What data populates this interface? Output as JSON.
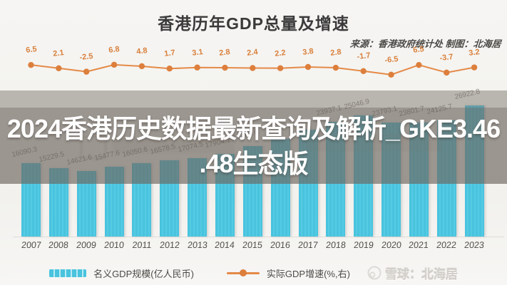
{
  "header": {
    "title": "香港历年GDP总量及增速",
    "source_note": "来源：香港政府统计处 制图：北海居"
  },
  "overlay_banner": {
    "line1": "2024香港历史数据最新查询及解析_GKE3.46",
    "line2": ".48生态版"
  },
  "legend": {
    "bar_label": "名义GDP规模(亿人民币)",
    "line_label": "实际GDP增速(%,右)"
  },
  "brand_watermark": "雪球：北海居",
  "colors": {
    "bar": "#49c3de",
    "line": "#e58a47",
    "line_dot": "#dd7f3c",
    "growth_label": "#d9803c",
    "bar_label": "#8b8884",
    "overlay_band": "rgba(110,102,94,0.66)",
    "overlay_text": "#ffffff",
    "background": "#f4f3f0",
    "title_text": "#3a3a3a"
  },
  "chart_data": {
    "type": "bar",
    "title": "香港历年GDP总量及增速",
    "xlabel": "",
    "ylabel": "",
    "categories": [
      "2007",
      "2008",
      "2009",
      "2010",
      "2011",
      "2012",
      "2013",
      "2014",
      "2015",
      "2016",
      "2017",
      "2018",
      "2019",
      "2020",
      "2021",
      "2022",
      "2023"
    ],
    "series": [
      {
        "name": "名义GDP规模(亿人民币)",
        "type": "bar",
        "values": [
          16090.3,
          15229.5,
          14621.6,
          15477.6,
          16050.6,
          16578.5,
          17074.5,
          17904.1,
          19260.0,
          20700,
          22400,
          23937.1,
          25046.9,
          23793.1,
          23801.7,
          24125.7,
          26922.8
        ],
        "visible_labels": [
          "16090.3",
          "15229.5",
          "14621.6",
          "15477.6",
          "16050.6",
          "16578.5",
          "17074.5",
          "17904.1",
          "19260.0",
          "",
          "",
          "23937.1",
          "25046.9",
          "23793.1",
          "23801.7",
          "24125.7",
          "26922.8"
        ],
        "note_2016_2017": "labels hidden behind overlay banner; bar heights estimated"
      },
      {
        "name": "实际GDP增速(%,右)",
        "type": "line",
        "values": [
          6.5,
          2.1,
          -2.5,
          6.8,
          4.8,
          1.7,
          3.1,
          2.8,
          2.4,
          2.2,
          3.8,
          2.8,
          -1.7,
          -6.5,
          6.5,
          -3.7,
          3.2
        ]
      }
    ],
    "legend_position": "bottom",
    "grid": false
  }
}
